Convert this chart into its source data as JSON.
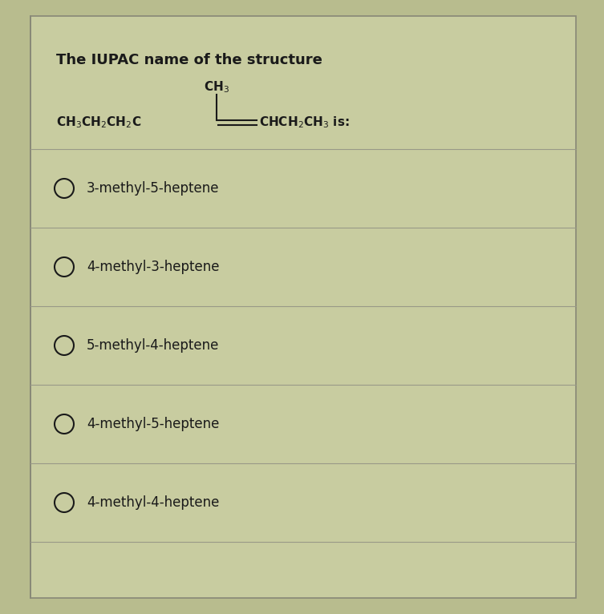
{
  "title": "The IUPAC name of the structure",
  "title_fontsize": 13,
  "options": [
    "3-methyl-5-heptene",
    "4-methyl-3-heptene",
    "5-methyl-4-heptene",
    "4-methyl-5-heptene",
    "4-methyl-4-heptene"
  ],
  "bg_color": "#b8bc8e",
  "panel_color": "#c8cca0",
  "text_color": "#1a1a1a",
  "option_fontsize": 12,
  "fig_width": 7.53,
  "fig_height": 7.66,
  "dpi": 100
}
